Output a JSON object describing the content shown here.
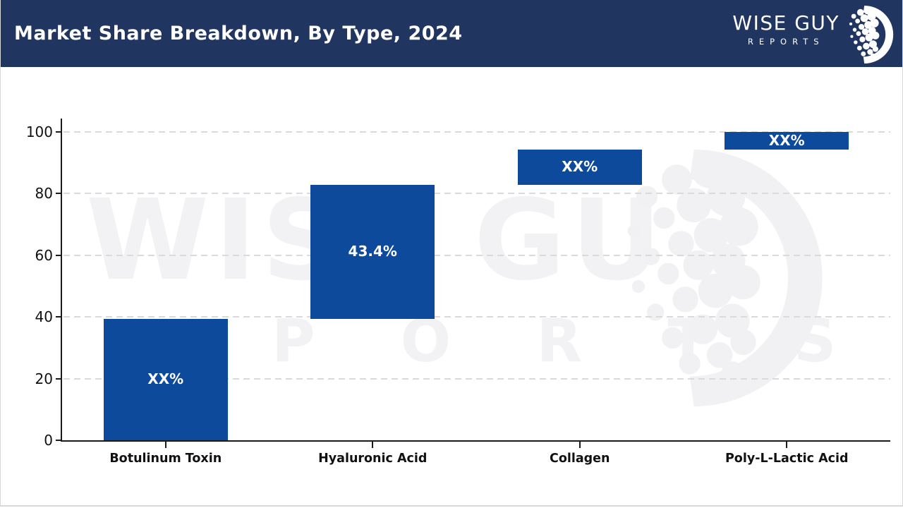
{
  "header": {
    "title": "Market Share Breakdown, By Type, 2024",
    "logo": {
      "line1": "WISE GUY",
      "line2": "REPORTS"
    }
  },
  "watermark": {
    "line1": "WISE GU",
    "line2": "P O R T S"
  },
  "colors": {
    "header_bg": "#213561",
    "bar": "#0d4a9c",
    "title_text": "#ffffff",
    "bar_label_text": "#ffffff",
    "axis": "#1a1a1a",
    "gridline": "#dadada",
    "tick_label": "#111111",
    "watermark": "#f2f2f4",
    "frame_border": "#d8d8d8"
  },
  "chart_data": {
    "type": "bar",
    "subtype": "waterfall",
    "title": "Market Share Breakdown, By Type, 2024",
    "categories": [
      "Botulinum Toxin",
      "Hyaluronic Acid",
      "Collagen",
      "Poly-L-Lactic Acid"
    ],
    "segments": [
      {
        "category": "Botulinum Toxin",
        "start": 0,
        "end": 39.4,
        "label": "XX%"
      },
      {
        "category": "Hyaluronic Acid",
        "start": 39.4,
        "end": 82.8,
        "label": "43.4%"
      },
      {
        "category": "Collagen",
        "start": 82.8,
        "end": 94.2,
        "label": "XX%"
      },
      {
        "category": "Poly-L-Lactic Acid",
        "start": 94.2,
        "end": 100,
        "label": "XX%"
      }
    ],
    "known_values": {
      "Hyaluronic Acid": 43.4
    },
    "ylim": [
      0,
      104
    ],
    "yticks": [
      0,
      20,
      40,
      60,
      80,
      100
    ],
    "grid": "horizontal-dashed",
    "legend": "none",
    "xlabel": "",
    "ylabel": ""
  }
}
